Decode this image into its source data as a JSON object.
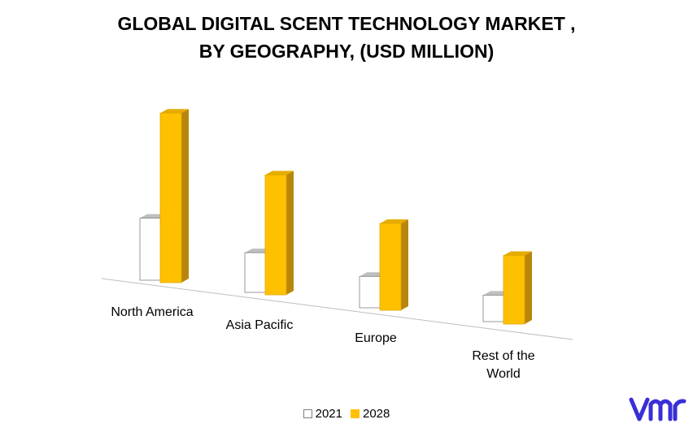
{
  "chart_data": {
    "type": "bar",
    "title_lines": [
      "GLOBAL DIGITAL SCENT TECHNOLOGY MARKET ,",
      "BY GEOGRAPHY, (USD MILLION)"
    ],
    "categories": [
      "North America",
      "Asia Pacific",
      "Europe",
      "Rest of the\nWorld"
    ],
    "series": [
      {
        "name": "2021",
        "values": [
          75,
          48,
          38,
          32
        ]
      },
      {
        "name": "2028",
        "values": [
          205,
          145,
          105,
          83
        ]
      }
    ],
    "ylim": [
      0,
      220
    ],
    "grid": false,
    "legend_position": "bottom",
    "colors": {
      "2021": "#ffffff",
      "2028": "#ffc000"
    }
  },
  "logo": {
    "text": "vmr",
    "color": "#3a2fd6"
  }
}
